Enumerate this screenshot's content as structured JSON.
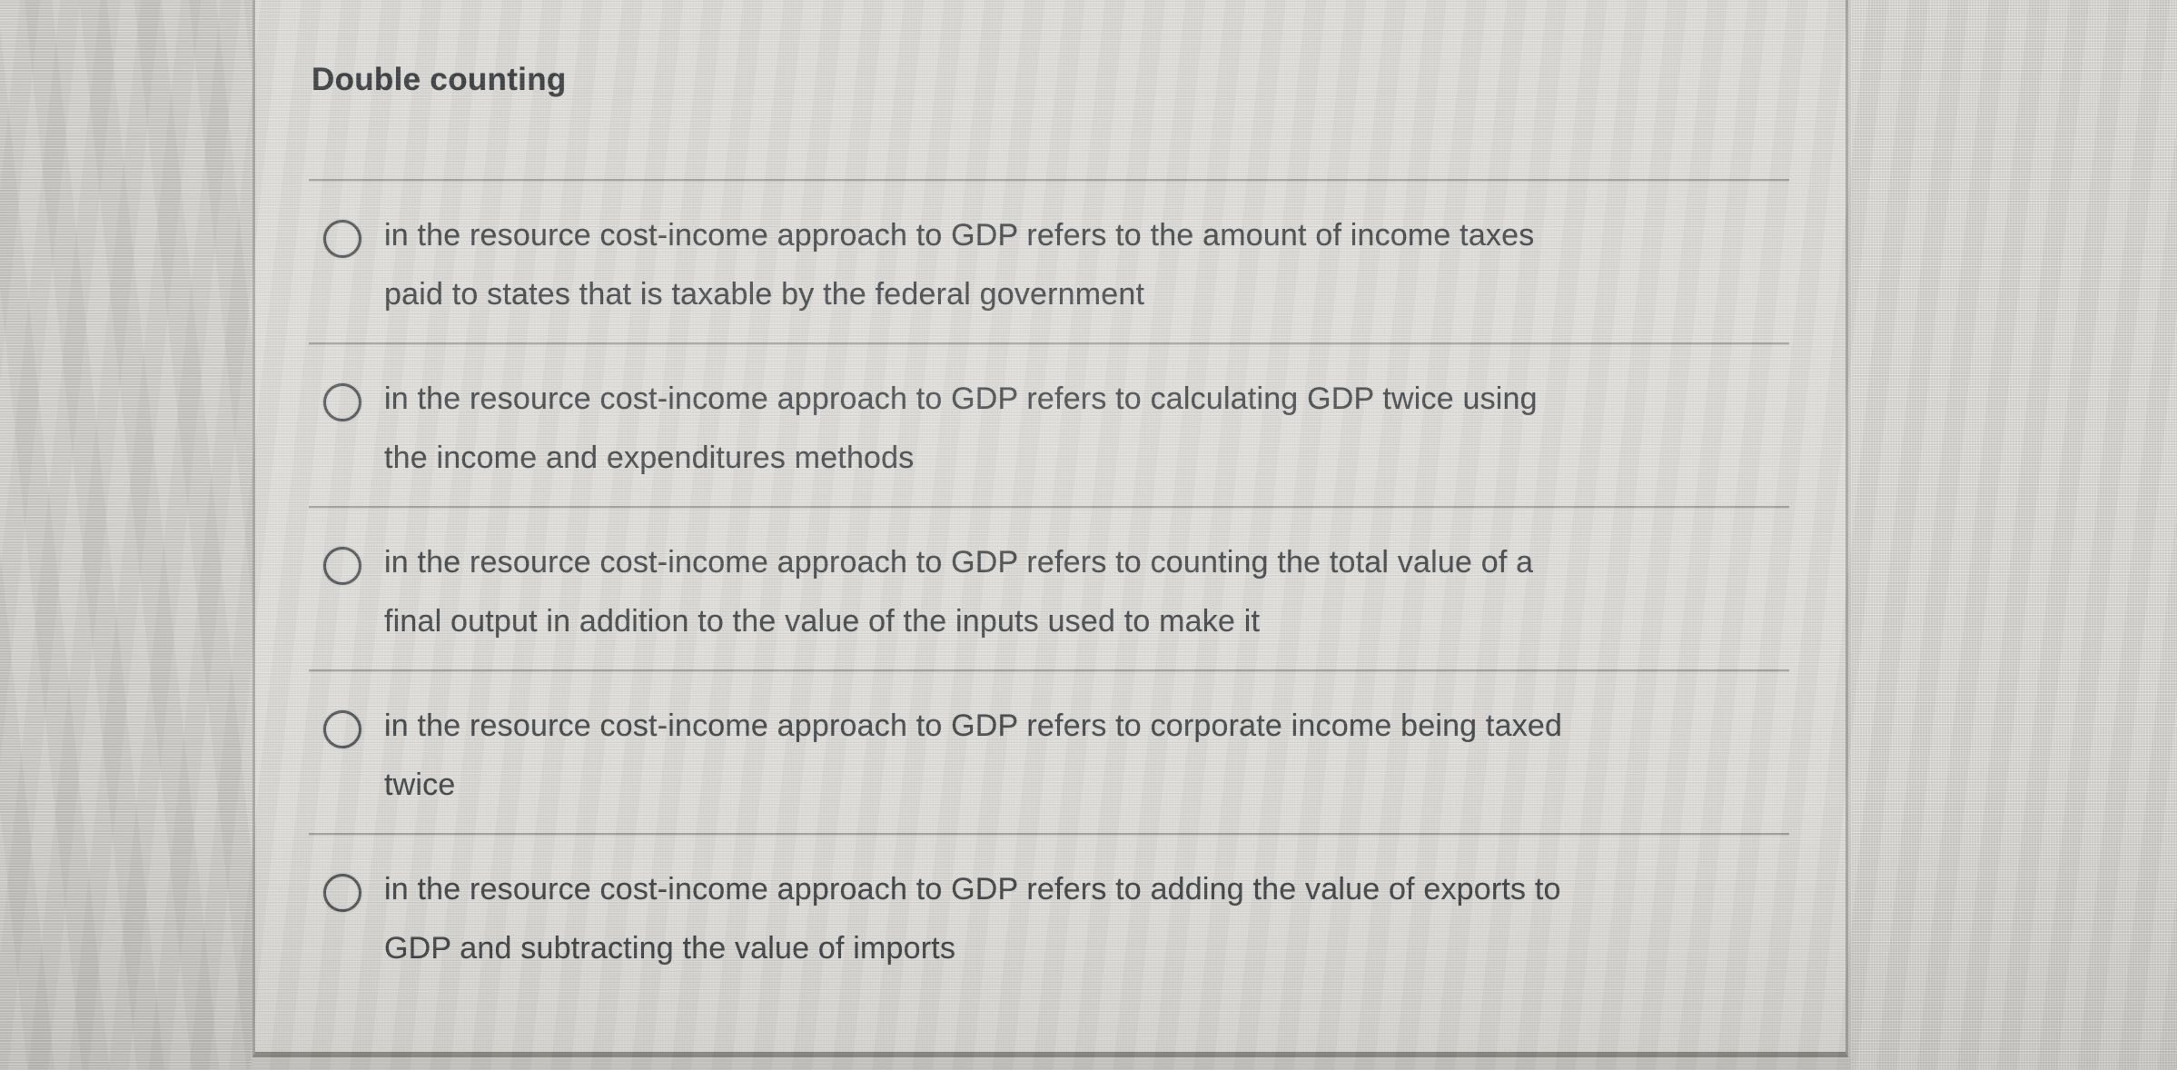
{
  "question": {
    "title": "Double counting",
    "options": [
      {
        "selected": false,
        "lines": [
          "in the resource cost-income approach to GDP refers to the amount of income taxes",
          "paid to states that is taxable by the federal government"
        ]
      },
      {
        "selected": false,
        "lines": [
          "in the resource cost-income approach to GDP refers to calculating GDP twice using",
          "the income and expenditures methods"
        ]
      },
      {
        "selected": false,
        "lines": [
          "in the resource cost-income approach to GDP refers to counting the total value of a",
          "final output in addition to the value of the inputs used to make it"
        ]
      },
      {
        "selected": false,
        "lines": [
          "in the resource cost-income approach to GDP refers to corporate income being taxed",
          "twice"
        ]
      },
      {
        "selected": false,
        "lines": [
          "in the resource cost-income approach to GDP refers to adding the value of exports to",
          "GDP and subtracting the value of imports"
        ]
      }
    ]
  },
  "colors": {
    "page_background": "#c7c5c1",
    "card_background": "#d8d6d2",
    "card_border": "#a5a39e",
    "card_bottom_edge": "#8b8984",
    "divider": "#a3a19d",
    "title_text": "#34383b",
    "option_text": "#3d4144",
    "radio_ring": "#4e5255"
  }
}
